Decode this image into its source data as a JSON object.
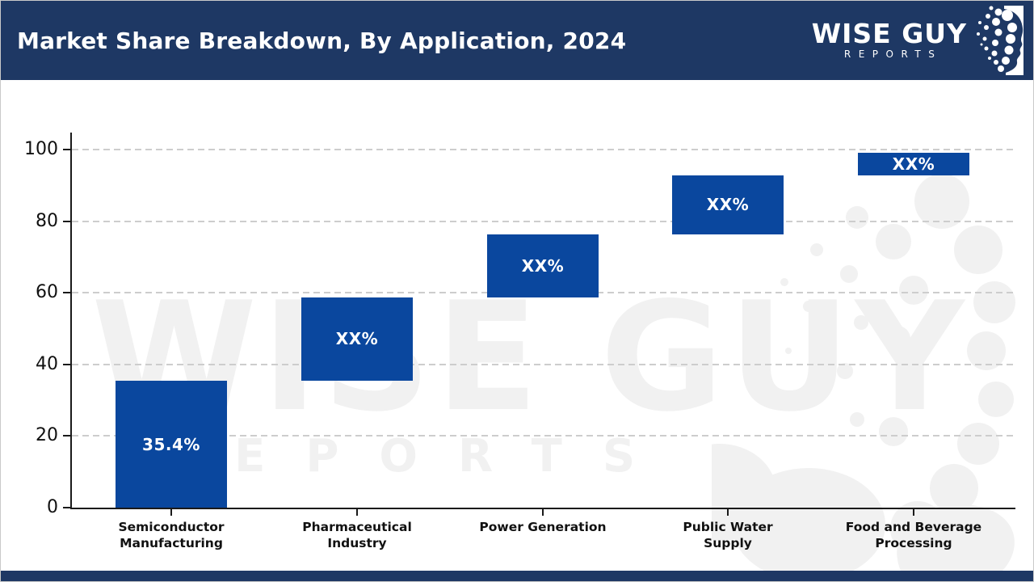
{
  "header": {
    "title": "Market Share Breakdown, By Application, 2024",
    "bg_color": "#1e3864",
    "logo": {
      "line1": "WISE GUY",
      "line2": "REPORTS"
    }
  },
  "footer": {
    "bg_color": "#1e3864"
  },
  "watermark": {
    "line1": "WISE GUY",
    "line2": "REPORTS",
    "color": "#f1f1f1"
  },
  "chart_data": {
    "type": "bar",
    "subtype": "waterfall-floating-bars",
    "title": "Market Share Breakdown, By Application, 2024",
    "xlabel": "",
    "ylabel": "",
    "categories": [
      "Semiconductor\nManufacturing",
      "Pharmaceutical\nIndustry",
      "Power Generation",
      "Public Water\nSupply",
      "Food and Beverage\nProcessing"
    ],
    "segments": [
      {
        "start": 0,
        "end": 35.4,
        "label": "35.4%"
      },
      {
        "start": 35.4,
        "end": 58.8,
        "label": "XX%"
      },
      {
        "start": 58.8,
        "end": 76.3,
        "label": "XX%"
      },
      {
        "start": 76.3,
        "end": 92.8,
        "label": "XX%"
      },
      {
        "start": 92.8,
        "end": 99.1,
        "label": "XX%"
      }
    ],
    "yticks": [
      0,
      20,
      40,
      60,
      80,
      100
    ],
    "ylim": [
      0,
      105
    ],
    "grid": "horizontal-dashed",
    "legend": "none",
    "bar_color": "#0a479e",
    "grid_color": "#cdcdcd",
    "axis_color": "#1a1a1a"
  }
}
